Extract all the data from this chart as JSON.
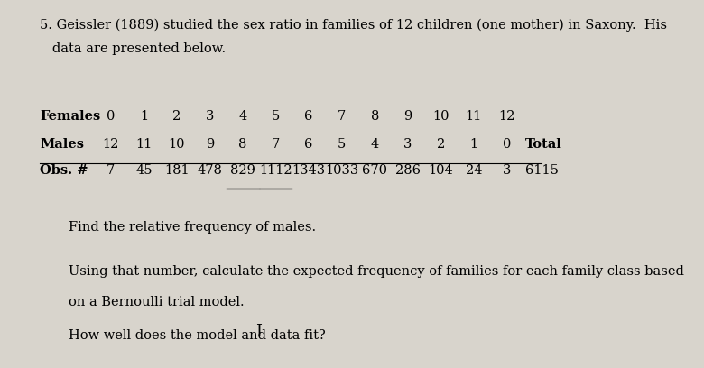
{
  "background_color": "#d8d4cc",
  "title_line1": "5. Geissler (1889) studied the sex ratio in families of 12 children (one mother) in Saxony.  His",
  "title_line2": "   data are presented below.",
  "row1_label": "Females",
  "row2_label": "Males",
  "row3_label": "Obs. #",
  "females": [
    "0",
    "1",
    "2",
    "3",
    "4",
    "5",
    "6",
    "7",
    "8",
    "9",
    "10",
    "11",
    "12"
  ],
  "males": [
    "12",
    "11",
    "10",
    "9",
    "8",
    "7",
    "6",
    "5",
    "4",
    "3",
    "2",
    "1",
    "0"
  ],
  "males_total_label": "Total",
  "obs": [
    "7",
    "45",
    "181",
    "478",
    "829",
    "1112",
    "1343",
    "1033",
    "670",
    "286",
    "104",
    "24",
    "3"
  ],
  "obs_total": "6115",
  "underline_indices": [
    4,
    5
  ],
  "para1": "Find the relative frequency of males.",
  "para2_line1": "Using that number, calculate the expected frequency of families for each family class based",
  "para2_line2": "on a Bernoulli trial model.",
  "para3": "How well does the model and data fit?"
}
